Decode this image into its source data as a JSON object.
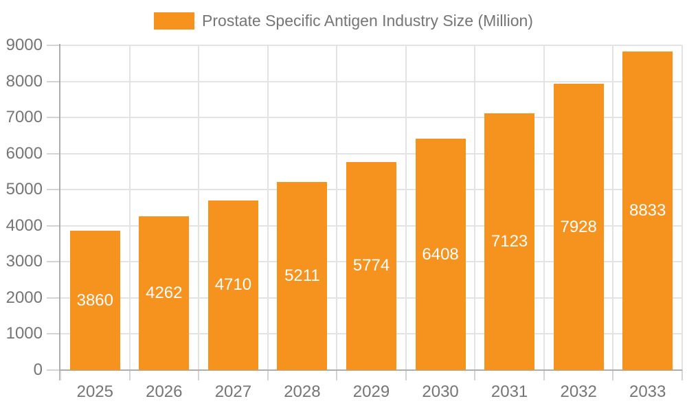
{
  "chart": {
    "legend": {
      "label": "Prostate Specific Antigen Industry Size (Million)",
      "swatch_color": "#F6921E"
    },
    "colors": {
      "bar_fill": "#F6921E",
      "bar_label": "#FFFFFF",
      "axis_label": "#757575",
      "legend_text": "#757575",
      "axis_line": "#ADADAD",
      "tick": "#D4D4D4",
      "gridline": "#E3E3E3",
      "background": "#FFFFFF"
    }
  },
  "chart_data": {
    "type": "bar",
    "title": "Prostate Specific Antigen Industry Size (Million)",
    "categories": [
      "2025",
      "2026",
      "2027",
      "2028",
      "2029",
      "2030",
      "2031",
      "2032",
      "2033"
    ],
    "values": [
      3860,
      4262,
      4710,
      5211,
      5774,
      6408,
      7123,
      7928,
      8833
    ],
    "series_name": "Prostate Specific Antigen Industry Size (Million)",
    "xlabel": "",
    "ylabel": "",
    "ylim": [
      0,
      9000
    ],
    "ytick_step": 1000,
    "ytick_labels": [
      "0",
      "1000",
      "2000",
      "3000",
      "4000",
      "5000",
      "6000",
      "7000",
      "8000",
      "9000"
    ],
    "grid": true,
    "legend_position": "top-center",
    "value_labels": "inside-center"
  }
}
